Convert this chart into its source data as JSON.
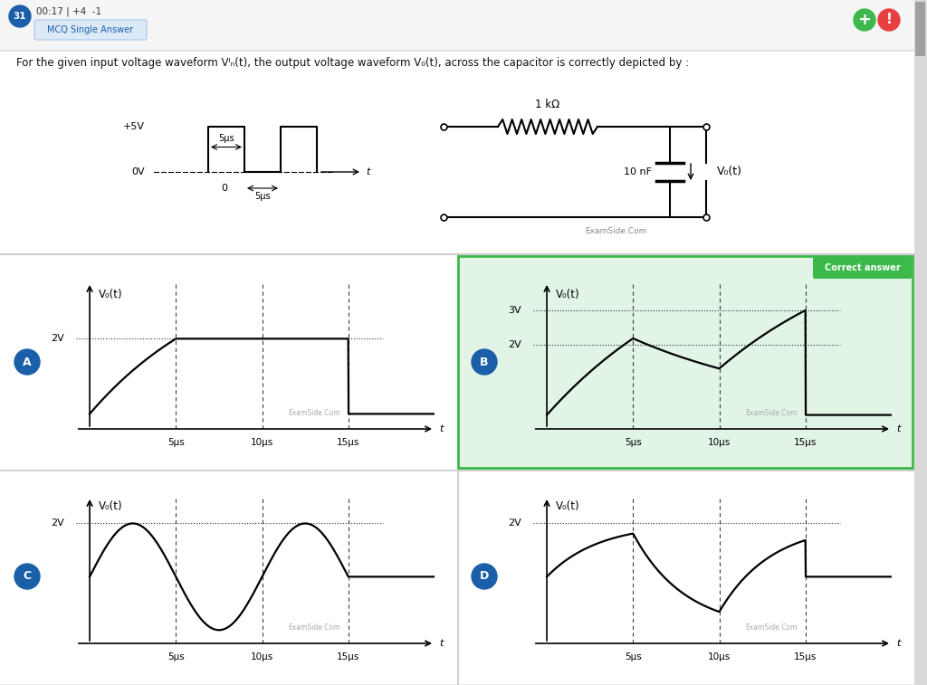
{
  "bg_color": "#e8e8e8",
  "top_bg": "#ffffff",
  "header_num": "31",
  "header_timer": "00:17 | +4  -1",
  "header_badge": "MCQ Single Answer",
  "header_badge_bg": "#dce9f7",
  "header_badge_border": "#aac4e8",
  "header_badge_color": "#1a5fa8",
  "btn_green": "#3cb94a",
  "btn_red": "#e84040",
  "question": "For the given input voltage waveform Vᴵₙ(t), the output voltage waveform V₀(t), across the capacitor is correctly depicted by :",
  "correct_bg": "#e2f4e6",
  "correct_border": "#3cb94a",
  "correct_badge_bg": "#3cb94a",
  "correct_badge_text": "Correct answer",
  "badge_blue": "#1a5fa8",
  "panel_bg": "#ffffff",
  "time_labels": [
    "5μs",
    "10μs",
    "15μs"
  ],
  "watermark": "ExamSide.Com",
  "scrollbar_color": "#c0c0c0",
  "divider_color": "#d0d0d0",
  "separator_color": "#cccccc"
}
